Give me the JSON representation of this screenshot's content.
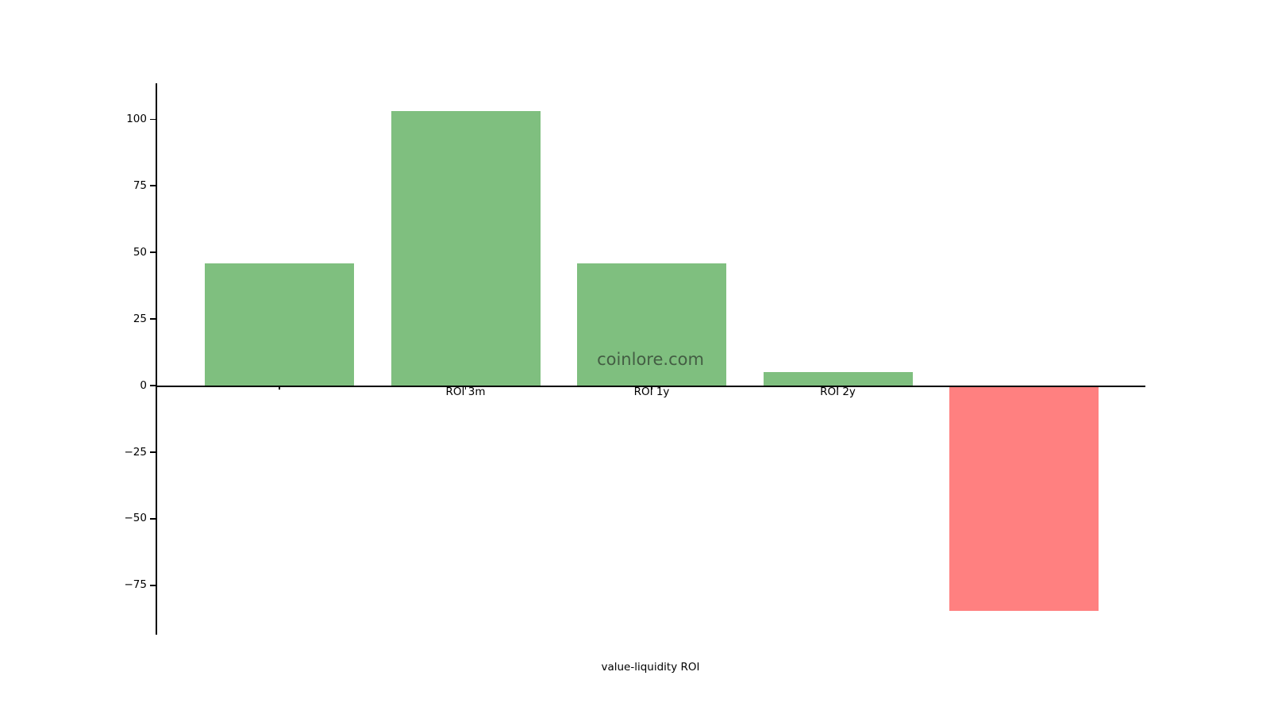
{
  "page": {
    "background": "#ffffff"
  },
  "watermark": {
    "text": "coinlore.com"
  },
  "chart_data": {
    "type": "bar",
    "title": "",
    "xlabel": "value-liquidity ROI",
    "ylabel": "",
    "categories": [
      "",
      "ROI 3m",
      "ROI 1y",
      "ROI 2y",
      ""
    ],
    "values": [
      46,
      103,
      46,
      5,
      -84
    ],
    "bar_colors": [
      "#7fbf7f",
      "#7fbf7f",
      "#7fbf7f",
      "#7fbf7f",
      "#ff8080"
    ],
    "positive_color": "#7fbf7f",
    "negative_color": "#ff8080",
    "yticks": [
      100,
      75,
      50,
      25,
      0,
      -25,
      -50,
      -75
    ],
    "ylim": [
      -93.5,
      113.5
    ],
    "grid": false,
    "legend_position": "none"
  }
}
